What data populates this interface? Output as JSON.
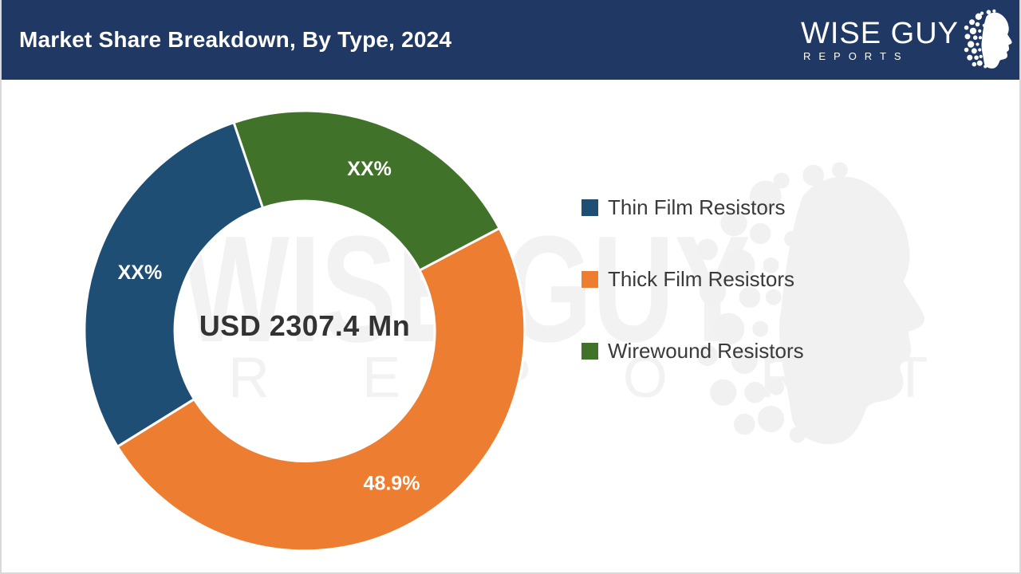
{
  "header": {
    "title": "Market Share Breakdown, By Type, 2024",
    "logo": {
      "line1": "WISE GUY",
      "line2": "REPORTS"
    }
  },
  "watermark": {
    "line1": "WISE GUY",
    "line2": "R E P O R T S"
  },
  "colors": {
    "header_bg": "#1f3864",
    "border": "#d9d9d9",
    "watermark": "#f2f2f3",
    "thin_film_blue": "#1f4e74",
    "thick_film_orange": "#ec7d31",
    "wirewound_green": "#41722a"
  },
  "chart_data": {
    "type": "pie",
    "subtype": "donut",
    "title": "Market Share Breakdown, By Type, 2024",
    "center_label": "USD 2307.4 Mn",
    "start_angle_deg": 108.8,
    "direction": "counterclockwise",
    "inner_radius_ratio": 0.59,
    "legend_position": "right",
    "segments": [
      {
        "name": "Thin Film Resistors",
        "value": 28.6,
        "label": "XX%",
        "color": "#1f4e74"
      },
      {
        "name": "Thick Film Resistors",
        "value": 48.9,
        "label": "48.9%",
        "color": "#ec7d31"
      },
      {
        "name": "Wirewound Resistors",
        "value": 22.5,
        "label": "XX%",
        "color": "#41722a"
      }
    ]
  }
}
